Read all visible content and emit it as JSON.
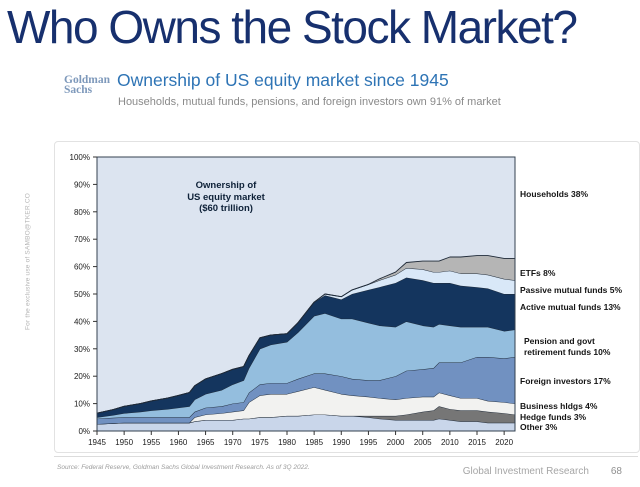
{
  "slide": {
    "title": "Who Owns the Stock Market?",
    "watermark": "For the exclusive use of SAMBO@TKER.CO",
    "logo": {
      "line1": "Goldman",
      "line2": "Sachs"
    },
    "header": {
      "title": "Ownership of US equity market since 1945",
      "subtitle": "Households, mutual funds, pensions, and foreign investors own 91% of market"
    },
    "footer": {
      "source": "Source: Federal Reserve, Goldman Sachs Global Investment Research. As of 3Q 2022.",
      "department": "Global Investment Research",
      "page_number": "68"
    }
  },
  "chart_data": {
    "type": "area",
    "stacked": true,
    "title": "Ownership of US equity market ($60 trillion)",
    "annotation": "Ownership of\nUS equity market\n($60 trillion)",
    "y_format": "percent",
    "ylim": [
      0,
      100
    ],
    "grid": false,
    "legend_position": "right",
    "outline_color": "#1f2a38",
    "axis_color": "#33404f",
    "x": [
      1945,
      1948,
      1950,
      1953,
      1955,
      1958,
      1960,
      1962,
      1963,
      1965,
      1968,
      1970,
      1972,
      1973,
      1975,
      1977,
      1980,
      1982,
      1985,
      1987,
      1990,
      1992,
      1995,
      1997,
      2000,
      2002,
      2005,
      2007,
      2008,
      2010,
      2012,
      2015,
      2017,
      2020,
      2022
    ],
    "x_ticks": [
      1945,
      1950,
      1955,
      1960,
      1965,
      1970,
      1975,
      1980,
      1985,
      1990,
      1995,
      2000,
      2005,
      2010,
      2015,
      2020
    ],
    "y_ticks": [
      0,
      10,
      20,
      30,
      40,
      50,
      60,
      70,
      80,
      90,
      100
    ],
    "households": {
      "name": "Households",
      "label": "Households 38%",
      "share_2022_pct": 38,
      "color": "#dce4f0",
      "is_remainder_to_100": true
    },
    "series": [
      {
        "name": "Other",
        "label": "Other 3%",
        "share_2022_pct": 3,
        "color": "#c9d6ea",
        "values": [
          2.5,
          2.8,
          3,
          3,
          3,
          3,
          3,
          3,
          3.5,
          4,
          4,
          4,
          4.5,
          4.5,
          5,
          5,
          5.5,
          5.5,
          6,
          6,
          5.5,
          5.5,
          5,
          4.5,
          4,
          4,
          4,
          4,
          4.5,
          4,
          3.5,
          3.5,
          3,
          3,
          3
        ]
      },
      {
        "name": "Hedge funds",
        "label": "Hedge funds 3%",
        "share_2022_pct": 3,
        "color": "#767676",
        "values": [
          0,
          0,
          0,
          0,
          0,
          0,
          0,
          0,
          0,
          0,
          0,
          0,
          0,
          0,
          0,
          0,
          0,
          0,
          0,
          0,
          0,
          0,
          0.5,
          1,
          1.5,
          2,
          3,
          3.5,
          4.5,
          4,
          4,
          4,
          4,
          3.5,
          3
        ]
      },
      {
        "name": "Business hldgs",
        "label": "Business hldgs 4%",
        "share_2022_pct": 4,
        "color": "#f2f2f0",
        "values": [
          0,
          0,
          0,
          0,
          0,
          0,
          0,
          0,
          1.5,
          2,
          2.5,
          3,
          3,
          6,
          8,
          8.5,
          8,
          9,
          10,
          9,
          8,
          7.5,
          7,
          6.5,
          6,
          6,
          5.5,
          5,
          5,
          5,
          4.5,
          4.5,
          4,
          4,
          4
        ]
      },
      {
        "name": "Foreign investors",
        "label": "Foreign investors 17%",
        "share_2022_pct": 17,
        "color": "#7191c1",
        "values": [
          2,
          2,
          2,
          2,
          2,
          2,
          2,
          2,
          2,
          2.5,
          2.5,
          3,
          3,
          3.5,
          4,
          4,
          4,
          4.5,
          5,
          6,
          6.5,
          6,
          6,
          6.5,
          8.5,
          10,
          10,
          10.5,
          11,
          12,
          13,
          15,
          16,
          16,
          17
        ]
      },
      {
        "name": "Pension and govt retirement funds",
        "label": "Pension and govt\nretirement funds 10%",
        "share_2022_pct": 10,
        "color": "#94bede",
        "values": [
          0.5,
          1,
          1.5,
          2,
          2.5,
          3,
          3.5,
          4,
          4.5,
          5,
          6,
          7,
          8,
          9,
          13,
          14,
          15,
          17,
          21,
          22,
          21,
          22,
          21,
          20,
          18,
          18,
          16,
          15,
          14,
          13.5,
          13,
          11,
          11,
          10,
          10
        ]
      },
      {
        "name": "Active mutual funds",
        "label": "Active mutual funds 13%",
        "share_2022_pct": 13,
        "color": "#14355e",
        "values": [
          1.5,
          2,
          2.5,
          3,
          3.5,
          4,
          4.5,
          5,
          5,
          5.5,
          6,
          5.5,
          5,
          4.5,
          4,
          3.5,
          3,
          3.5,
          5,
          6.5,
          7,
          9,
          12,
          14,
          16,
          16,
          16.5,
          16,
          15,
          15.5,
          15,
          14.5,
          14,
          13.5,
          13
        ]
      },
      {
        "name": "Passive mutual funds",
        "label": "Passive mutual funds 5%",
        "share_2022_pct": 5,
        "color": "#d9e8f8",
        "values": [
          0,
          0,
          0,
          0,
          0,
          0,
          0,
          0,
          0,
          0,
          0,
          0,
          0,
          0,
          0,
          0,
          0,
          0,
          0,
          0.5,
          1,
          1.5,
          2,
          2.5,
          3,
          3.5,
          4,
          4,
          4,
          4.5,
          4.5,
          5,
          5,
          5.5,
          5
        ]
      },
      {
        "name": "ETFs",
        "label": "ETFs 8%",
        "share_2022_pct": 8,
        "color": "#b5b5b5",
        "values": [
          0,
          0,
          0,
          0,
          0,
          0,
          0,
          0,
          0,
          0,
          0,
          0,
          0,
          0,
          0,
          0,
          0,
          0,
          0,
          0,
          0,
          0,
          0,
          0.5,
          1,
          2,
          3,
          4,
          4,
          5,
          6,
          6.5,
          7,
          7.5,
          8
        ]
      }
    ]
  }
}
